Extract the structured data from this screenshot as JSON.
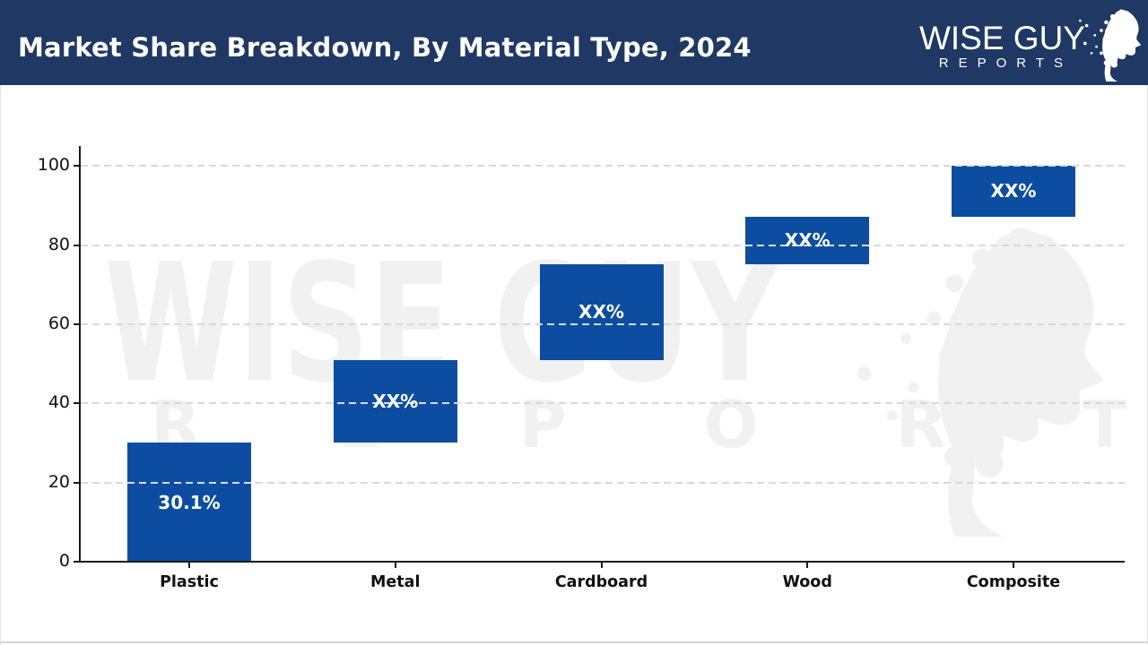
{
  "header": {
    "title": "Market Share Breakdown, By Material Type, 2024",
    "bg_color": "#1f3864",
    "logo": {
      "line1": "WISE GUY",
      "line2": "REPORTS"
    }
  },
  "watermark": {
    "line1": "WISE GUY",
    "line2": "R E P O R T S"
  },
  "icons": {
    "logo_head": "dotted-head-profile",
    "watermark_head": "dotted-head-profile"
  },
  "colors": {
    "header_bg": "#1f3864",
    "bar": "#0c4da2",
    "grid": "#d9d9d9",
    "watermark": "#f1f1f1",
    "axis": "#1a1a1a",
    "bar_label_text": "#ffffff"
  },
  "chart_data": {
    "type": "bar",
    "subtype": "waterfall",
    "title": "Market Share Breakdown, By Material Type, 2024",
    "categories": [
      "Plastic",
      "Metal",
      "Cardboard",
      "Wood",
      "Composite"
    ],
    "series": [
      {
        "name": "Market share (%)",
        "starts": [
          0,
          30.1,
          51.0,
          75.2,
          87.3
        ],
        "ends": [
          30.1,
          51.0,
          75.2,
          87.3,
          100.0
        ]
      }
    ],
    "segment_values": [
      30.1,
      20.9,
      24.2,
      12.1,
      12.7
    ],
    "bar_labels": [
      "30.1%",
      "XX%",
      "XX%",
      "XX%",
      "XX%"
    ],
    "yticks": [
      0,
      20,
      40,
      60,
      80,
      100
    ],
    "ylim": [
      0,
      105
    ],
    "xlabel": "",
    "ylabel": "",
    "grid": "horizontal-dashed",
    "legend": "none",
    "bar_color": "#0c4da2"
  }
}
